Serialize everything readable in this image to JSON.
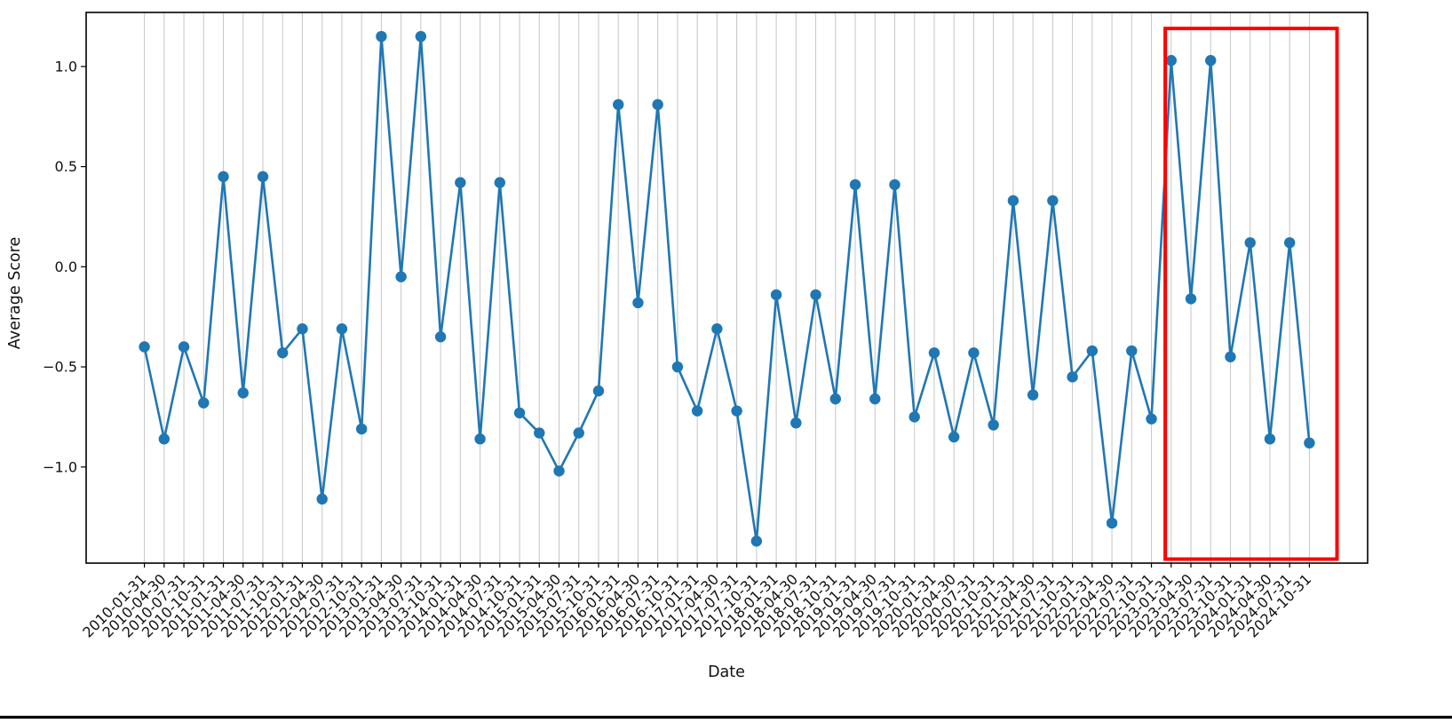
{
  "figure": {
    "background": "#ffffff"
  },
  "chart_data": {
    "type": "line",
    "title": "",
    "xlabel": "Date",
    "ylabel": "Average Score",
    "legend": "none",
    "grid": "vertical",
    "grid_color": "#c6c6c6",
    "line_color": "#1f77b4",
    "marker": "circle",
    "ylim": [
      -1.48,
      1.27
    ],
    "yticks": [
      1.0,
      0.5,
      0.0,
      -0.5,
      -1.0
    ],
    "categories": [
      "2010-01-31",
      "2010-04-30",
      "2010-07-31",
      "2010-10-31",
      "2011-01-31",
      "2011-04-30",
      "2011-07-31",
      "2011-10-31",
      "2012-01-31",
      "2012-04-30",
      "2012-07-31",
      "2012-10-31",
      "2013-01-31",
      "2013-04-30",
      "2013-07-31",
      "2013-10-31",
      "2014-01-31",
      "2014-04-30",
      "2014-07-31",
      "2014-10-31",
      "2015-01-31",
      "2015-04-30",
      "2015-07-31",
      "2015-10-31",
      "2016-01-31",
      "2016-04-30",
      "2016-07-31",
      "2016-10-31",
      "2017-01-31",
      "2017-04-30",
      "2017-07-31",
      "2017-10-31",
      "2018-01-31",
      "2018-04-30",
      "2018-07-31",
      "2018-10-31",
      "2019-01-31",
      "2019-04-30",
      "2019-07-31",
      "2019-10-31",
      "2020-01-31",
      "2020-04-30",
      "2020-07-31",
      "2020-10-31",
      "2021-01-31",
      "2021-04-30",
      "2021-07-31",
      "2021-10-31",
      "2022-01-31",
      "2022-04-30",
      "2022-07-31",
      "2022-10-31",
      "2023-01-31",
      "2023-04-30",
      "2023-07-31",
      "2023-10-31",
      "2024-01-31",
      "2024-04-30",
      "2024-07-31",
      "2024-10-31"
    ],
    "values": [
      -0.4,
      -0.86,
      -0.4,
      -0.68,
      0.45,
      -0.63,
      0.45,
      -0.43,
      -0.31,
      -1.16,
      -0.31,
      -0.81,
      1.15,
      -0.05,
      1.15,
      -0.35,
      0.42,
      -0.86,
      0.42,
      -0.73,
      -0.83,
      -1.02,
      -0.83,
      -0.62,
      0.81,
      -0.18,
      0.81,
      -0.5,
      -0.72,
      -0.31,
      -0.72,
      -1.37,
      -0.14,
      -0.78,
      -0.14,
      -0.66,
      0.41,
      -0.66,
      0.41,
      -0.75,
      -0.43,
      -0.85,
      -0.43,
      -0.79,
      0.33,
      -0.64,
      0.33,
      -0.55,
      -0.42,
      -1.28,
      -0.42,
      -0.76,
      1.03,
      -0.16,
      1.03,
      -0.45,
      0.12,
      -0.86,
      0.12,
      -0.88
    ],
    "highlight": {
      "shape": "rect",
      "color": "#ff0000",
      "from_category": "2023-01-31",
      "to_category": "2024-10-31",
      "x_start_index": 51.7,
      "x_end_index": 60.4,
      "y_min": -1.46,
      "y_max": 1.19
    }
  }
}
